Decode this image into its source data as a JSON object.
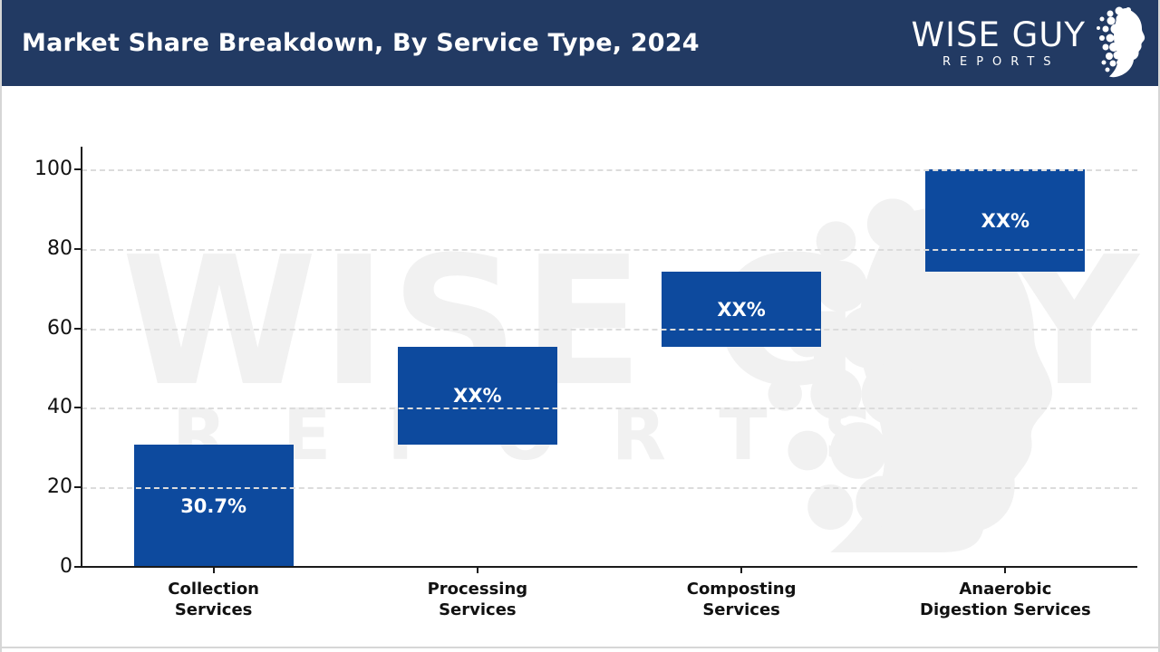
{
  "header": {
    "title": "Market Share Breakdown, By Service Type, 2024",
    "bg_color": "#223a63",
    "logo": {
      "line1": "WISE GUY",
      "line2": "REPORTS"
    }
  },
  "watermark": {
    "line1": "WISE GUY",
    "line2": "REPORTS"
  },
  "chart_data": {
    "type": "bar",
    "subtype": "waterfall",
    "title": "Market Share Breakdown, By Service Type, 2024",
    "categories": [
      "Collection Services",
      "Processing Services",
      "Composting Services",
      "Anaerobic Digestion Services"
    ],
    "categories_lines": [
      [
        "Collection",
        "Services"
      ],
      [
        "Processing",
        "Services"
      ],
      [
        "Composting",
        "Services"
      ],
      [
        "Anaerobic",
        "Digestion Services"
      ]
    ],
    "segments": [
      {
        "start": 0,
        "end": 30.7,
        "label": "30.7%"
      },
      {
        "start": 30.7,
        "end": 55.4,
        "label": "XX%"
      },
      {
        "start": 55.4,
        "end": 74.2,
        "label": "XX%"
      },
      {
        "start": 74.2,
        "end": 100,
        "label": "XX%"
      }
    ],
    "yticks": [
      0,
      20,
      40,
      60,
      80,
      100
    ],
    "ylim": [
      0,
      100
    ],
    "bar_color": "#0d4a9e",
    "grid": "dashed-horizontal",
    "legend": "none"
  }
}
